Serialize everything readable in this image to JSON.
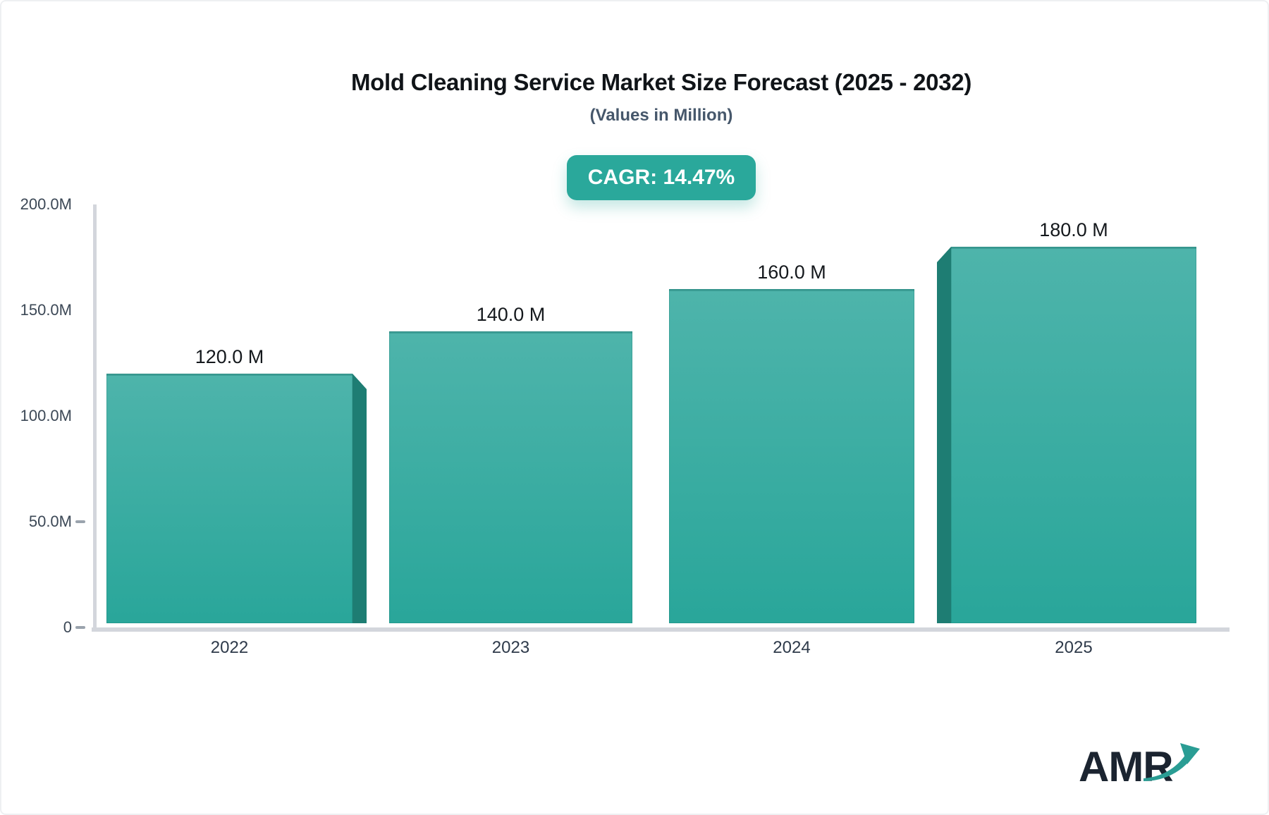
{
  "header": {
    "title": "Mold Cleaning Service Market Size Forecast (2025 - 2032)",
    "subtitle": "(Values in Million)",
    "cagr_badge": "CAGR: 14.47%"
  },
  "chart_data": {
    "type": "bar",
    "title": "Mold Cleaning Service Market Size Forecast (2025 - 2032)",
    "subtitle": "(Values in Million)",
    "cagr_percent": 14.47,
    "categories": [
      "2022",
      "2023",
      "2024",
      "2025"
    ],
    "values": [
      120,
      140,
      160,
      180
    ],
    "value_labels": [
      "120.0 M",
      "140.0 M",
      "160.0 M",
      "180.0 M"
    ],
    "value_unit": "Million",
    "ylim": [
      0,
      200
    ],
    "yticks": [
      {
        "label": "200.0M",
        "value": 200,
        "dash": false
      },
      {
        "label": "150.0M",
        "value": 150,
        "dash": false
      },
      {
        "label": "100.0M",
        "value": 100,
        "dash": false
      },
      {
        "label": "50.0M",
        "value": 50,
        "dash": true
      },
      {
        "label": "0",
        "value": 0,
        "dash": true
      }
    ],
    "grid": false,
    "legend": false,
    "colors": {
      "bar_top": "#4eb4ab",
      "bar_bottom": "#29a69a",
      "bar_side_3d": "#1e7d73",
      "bar_border": "#2f9e93",
      "axis_line": "#d3d6dc",
      "badge_bg": "#2aa89b",
      "badge_text": "#ffffff",
      "title_text": "#101418",
      "subtitle_text": "#46576b",
      "tick_text": "#3c4856"
    }
  },
  "logo": {
    "text": "AMR",
    "color": "#1b2430",
    "arrow_color": "#2a9d94"
  }
}
